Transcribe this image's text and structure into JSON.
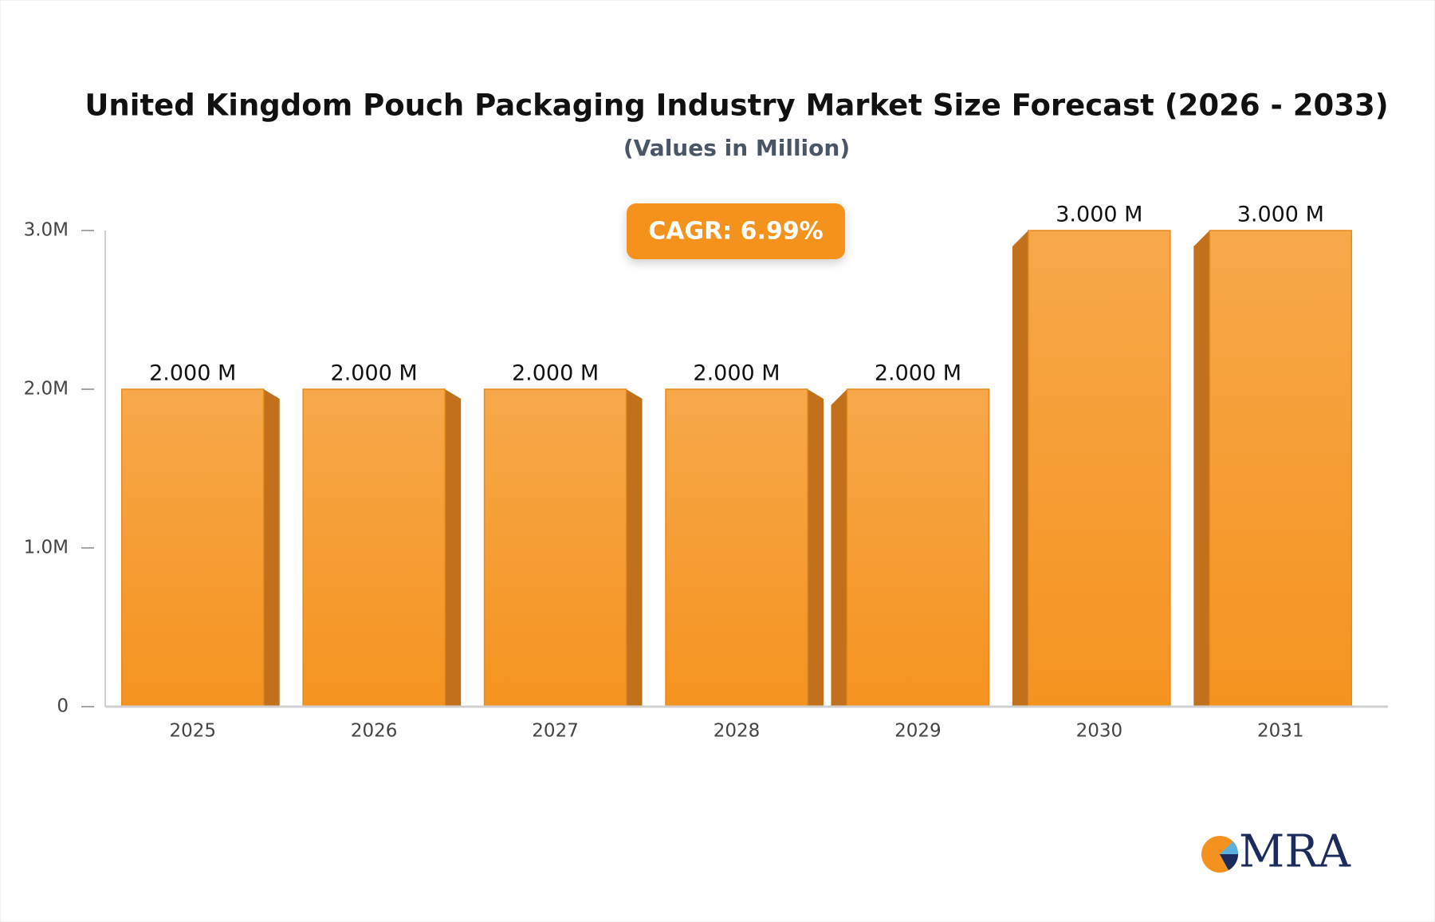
{
  "chart_data": {
    "type": "bar",
    "title": "United Kingdom Pouch Packaging Industry Market Size Forecast (2026 - 2033)",
    "subtitle": "(Values in Million)",
    "annotation": "CAGR: 6.99%",
    "categories": [
      "2025",
      "2026",
      "2027",
      "2028",
      "2029",
      "2030",
      "2031"
    ],
    "values": [
      2000000,
      2000000,
      2000000,
      2000000,
      2000000,
      3000000,
      3000000
    ],
    "value_labels": [
      "2.000 M",
      "2.000 M",
      "2.000 M",
      "2.000 M",
      "2.000 M",
      "3.000 M",
      "3.000 M"
    ],
    "color": "#f69a2b",
    "ylim": [
      0,
      3000000
    ],
    "yticks": [
      0,
      {
        "value": 1000000,
        "label": "1.0M"
      },
      {
        "value": 2000000,
        "label": "2.0M"
      },
      {
        "value": 3000000,
        "label": "3.0M"
      }
    ],
    "grid": false
  },
  "logo": "MRA"
}
